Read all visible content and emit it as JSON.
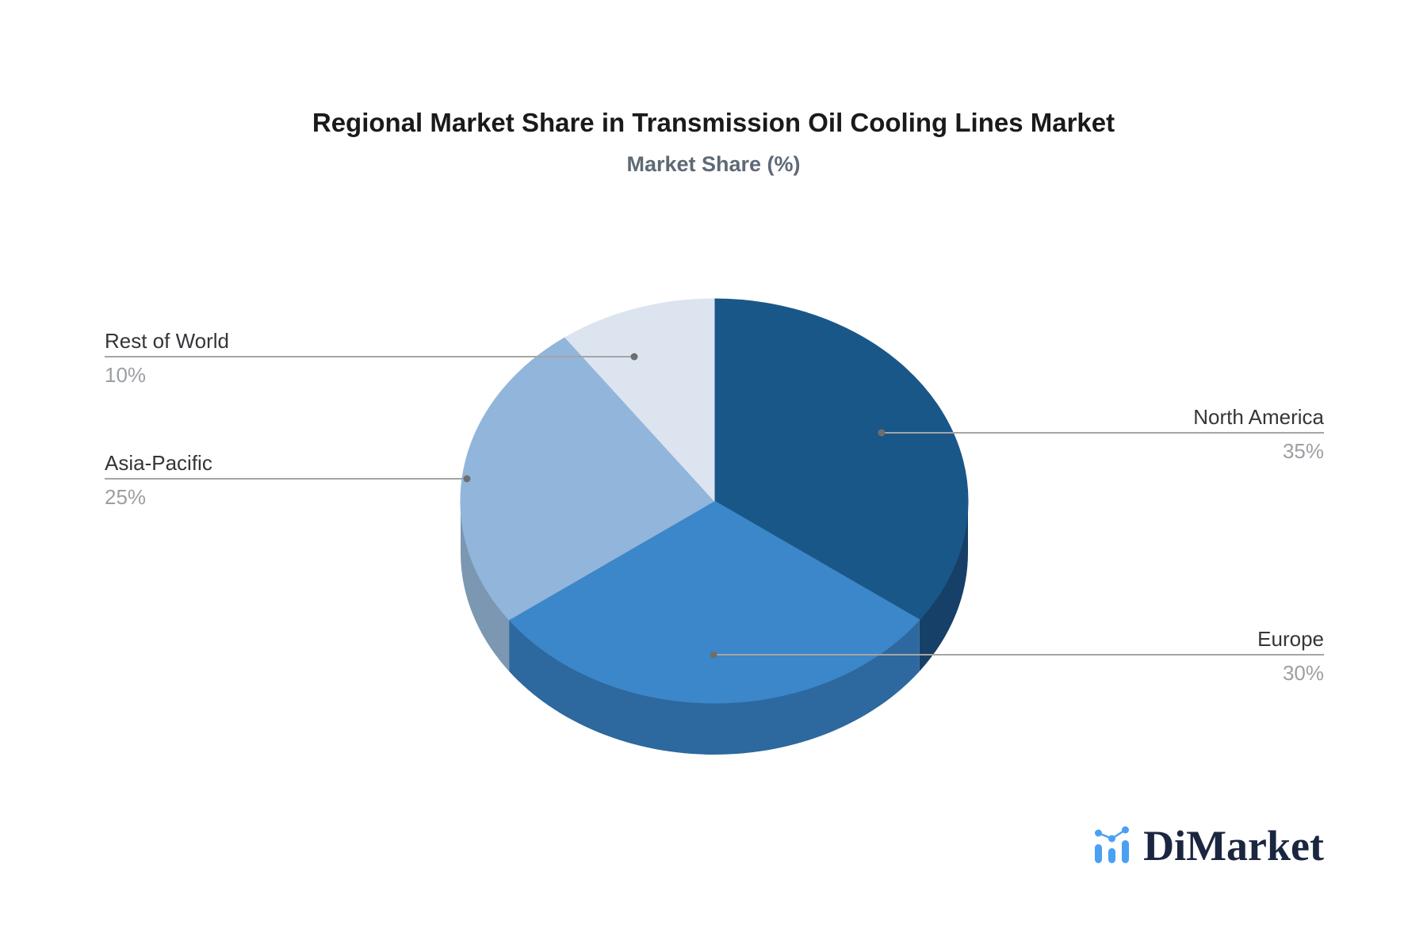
{
  "title": "Regional Market Share in Transmission Oil Cooling Lines Market",
  "subtitle": "Market Share (%)",
  "chart_data": {
    "type": "pie",
    "style": "3d",
    "unit": "%",
    "start_angle": "top",
    "direction": "clockwise",
    "legend": "none",
    "segments": [
      {
        "label": "North America",
        "value": 35,
        "display": "35%",
        "color": "#1a5789",
        "side_color": "#164067",
        "label_side": "right"
      },
      {
        "label": "Europe",
        "value": 30,
        "display": "30%",
        "color": "#3c87c9",
        "side_color": "#2d689e",
        "label_side": "right"
      },
      {
        "label": "Asia-Pacific",
        "value": 25,
        "display": "25%",
        "color": "#92b5db",
        "side_color": "#7b97b2",
        "label_side": "left"
      },
      {
        "label": "Rest of World",
        "value": 10,
        "display": "10%",
        "color": "#dce4f0",
        "side_color": "#b9c5d8",
        "label_side": "left"
      }
    ],
    "connector_color": "#a5a5a5",
    "connector_dot_color": "#6e6e6e",
    "label_color": "#333639",
    "value_color": "#9c9fa3"
  },
  "branding": {
    "logo_text": "DiMarket",
    "logo_text_color": "#1b2640",
    "logo_icon": "bar-line-chart-icon",
    "logo_icon_color": "#4aa0f4"
  }
}
